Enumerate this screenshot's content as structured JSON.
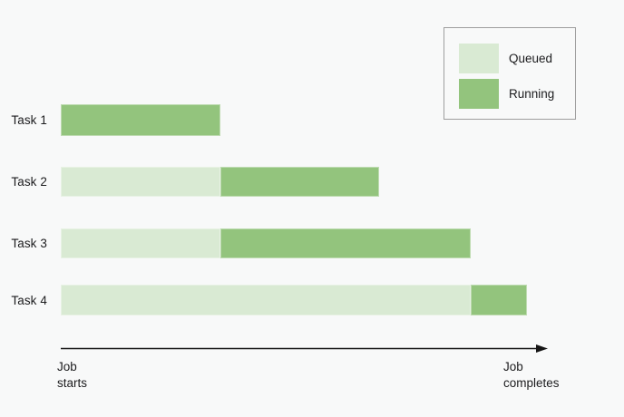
{
  "chart_data": {
    "type": "gantt",
    "description": "Task timeline bar chart showing queued vs running phases of four tasks within a job",
    "timeline_units": "percent of longest task span (0-100)",
    "tasks": [
      {
        "label": "Task 1",
        "segments": [
          {
            "state": "Running",
            "start": 0,
            "end": 34.2
          }
        ]
      },
      {
        "label": "Task 2",
        "segments": [
          {
            "state": "Queued",
            "start": 0,
            "end": 34.2
          },
          {
            "state": "Running",
            "start": 34.2,
            "end": 68.3
          }
        ]
      },
      {
        "label": "Task 3",
        "segments": [
          {
            "state": "Queued",
            "start": 0,
            "end": 34.2
          },
          {
            "state": "Running",
            "start": 34.2,
            "end": 87.9
          }
        ]
      },
      {
        "label": "Task 4",
        "segments": [
          {
            "state": "Queued",
            "start": 0,
            "end": 87.9
          },
          {
            "state": "Running",
            "start": 87.9,
            "end": 100
          }
        ]
      }
    ],
    "colors": {
      "Queued": "#d9ead3",
      "Running": "#93c47d"
    },
    "legend": [
      {
        "label": "Queued",
        "color": "#d9ead3"
      },
      {
        "label": "Running",
        "color": "#93c47d"
      }
    ],
    "axis": {
      "orientation": "horizontal",
      "arrow": true,
      "start_label": [
        "Job",
        "starts"
      ],
      "end_label": [
        "Job",
        "completes"
      ]
    },
    "grid": "off",
    "legend_position": "top-right"
  },
  "theme": {
    "background": "#f8f9f9",
    "text_color": "#1c1c1e",
    "legend_border": "#9e9e9e",
    "axis_color": "#151515"
  }
}
